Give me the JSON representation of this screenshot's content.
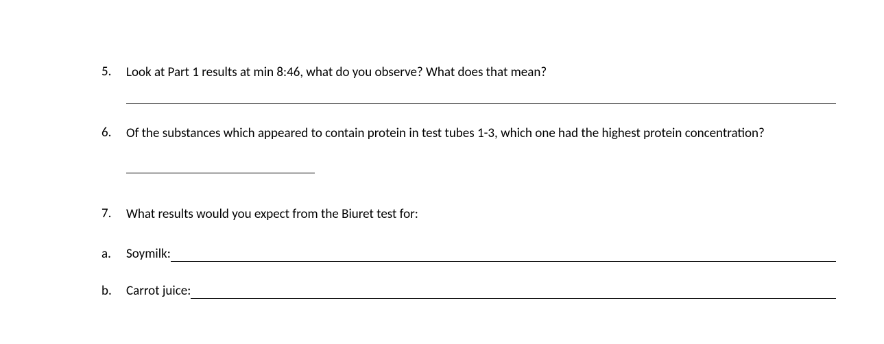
{
  "questions": {
    "q5": {
      "number": "5.",
      "text": "Look at Part 1 results at min 8:46, what do you observe? What does that mean?"
    },
    "q6": {
      "number": "6.",
      "text": "Of the substances which appeared to contain protein in test tubes 1-3, which one had the highest protein concentration?"
    },
    "q7": {
      "number": "7.",
      "text": "What results would you expect from the Biuret test for:",
      "subs": {
        "a": {
          "letter": "a.",
          "label": "Soymilk:"
        },
        "b": {
          "letter": "b.",
          "label": "Carrot juice:"
        }
      }
    }
  }
}
